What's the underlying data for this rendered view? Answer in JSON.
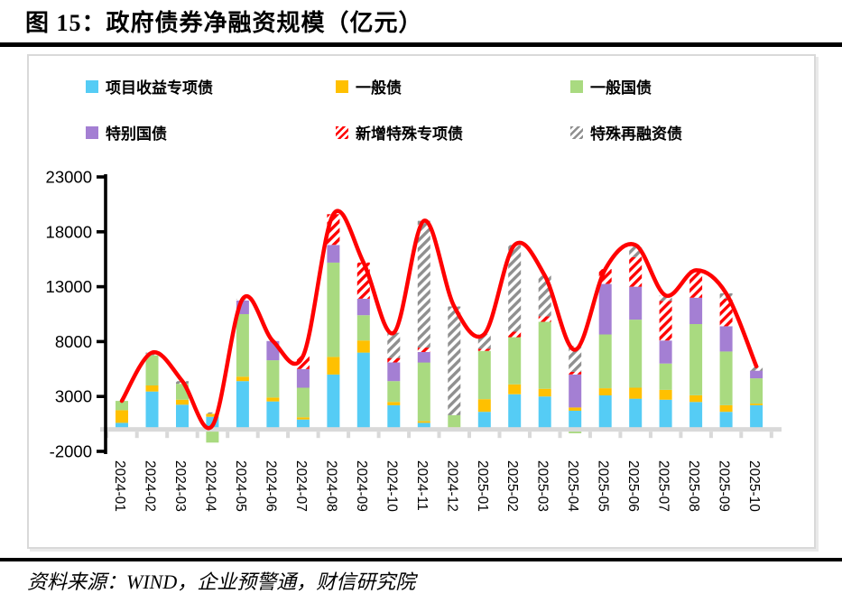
{
  "figure": {
    "title": "图 15：政府债券净融资规模（亿元）",
    "source": "资料来源：WIND，企业预警通，财信研究院"
  },
  "chart_data": {
    "type": "bar",
    "subtype": "stacked-bars-with-smooth-line",
    "title": "政府债券净融资规模",
    "unit": "亿元",
    "legend_position": "top",
    "grid": false,
    "x_tick_rotation": 90,
    "ylim": [
      -2000,
      23000
    ],
    "yticks": [
      -2000,
      3000,
      8000,
      13000,
      18000,
      23000
    ],
    "categories": [
      "2024-01",
      "2024-02",
      "2024-03",
      "2024-04",
      "2024-05",
      "2024-06",
      "2024-07",
      "2024-08",
      "2024-09",
      "2024-10",
      "2024-11",
      "2024-12",
      "2025-01",
      "2025-02",
      "2025-03",
      "2025-04",
      "2025-05",
      "2025-06",
      "2025-07",
      "2025-08",
      "2025-09",
      "2025-10"
    ],
    "series": [
      {
        "name": "项目收益专项债",
        "color": "#55CCF5",
        "pattern": "solid",
        "values": [
          600,
          3450,
          2250,
          1150,
          4400,
          2550,
          900,
          5000,
          7000,
          2200,
          600,
          0,
          1600,
          3200,
          3000,
          1700,
          3100,
          2800,
          2700,
          2500,
          1600,
          2200
        ]
      },
      {
        "name": "一般债",
        "color": "#FFC000",
        "pattern": "solid",
        "values": [
          1150,
          550,
          450,
          270,
          400,
          350,
          200,
          1600,
          1100,
          300,
          150,
          200,
          1150,
          900,
          700,
          300,
          650,
          1000,
          900,
          600,
          600,
          150
        ]
      },
      {
        "name": "一般国债",
        "color": "#A9DA80",
        "pattern": "solid",
        "values": [
          850,
          2750,
          1450,
          -1200,
          5700,
          3400,
          2700,
          8600,
          2300,
          1900,
          5350,
          1100,
          4400,
          4300,
          6100,
          -350,
          4900,
          6200,
          2400,
          6500,
          4900,
          2300
        ]
      },
      {
        "name": "特别国债",
        "color": "#A47FD3",
        "pattern": "solid",
        "values": [
          0,
          0,
          0,
          0,
          1250,
          1750,
          1700,
          1600,
          1500,
          1700,
          950,
          0,
          0,
          0,
          0,
          3000,
          4600,
          3000,
          2100,
          2400,
          2300,
          700
        ]
      },
      {
        "name": "新增特殊专项债",
        "color": "#FF0000",
        "pattern": "hatch",
        "values": [
          0,
          0,
          0,
          0,
          0,
          0,
          1200,
          2800,
          3300,
          400,
          400,
          0,
          200,
          500,
          500,
          250,
          1350,
          2700,
          3600,
          2500,
          2500,
          0
        ]
      },
      {
        "name": "特殊再融资债",
        "color": "#8F8F8F",
        "pattern": "hatch",
        "values": [
          0,
          250,
          250,
          130,
          150,
          0,
          0,
          0,
          0,
          2300,
          11550,
          9900,
          1350,
          7900,
          3700,
          2350,
          0,
          1100,
          500,
          0,
          500,
          400
        ]
      }
    ],
    "line": {
      "color": "#FF0000",
      "values": [
        2600,
        7000,
        4400,
        350,
        11900,
        8050,
        6700,
        19600,
        15200,
        8800,
        19000,
        11200,
        8700,
        16800,
        14000,
        7250,
        14600,
        16800,
        12200,
        14500,
        12400,
        5750
      ]
    }
  }
}
